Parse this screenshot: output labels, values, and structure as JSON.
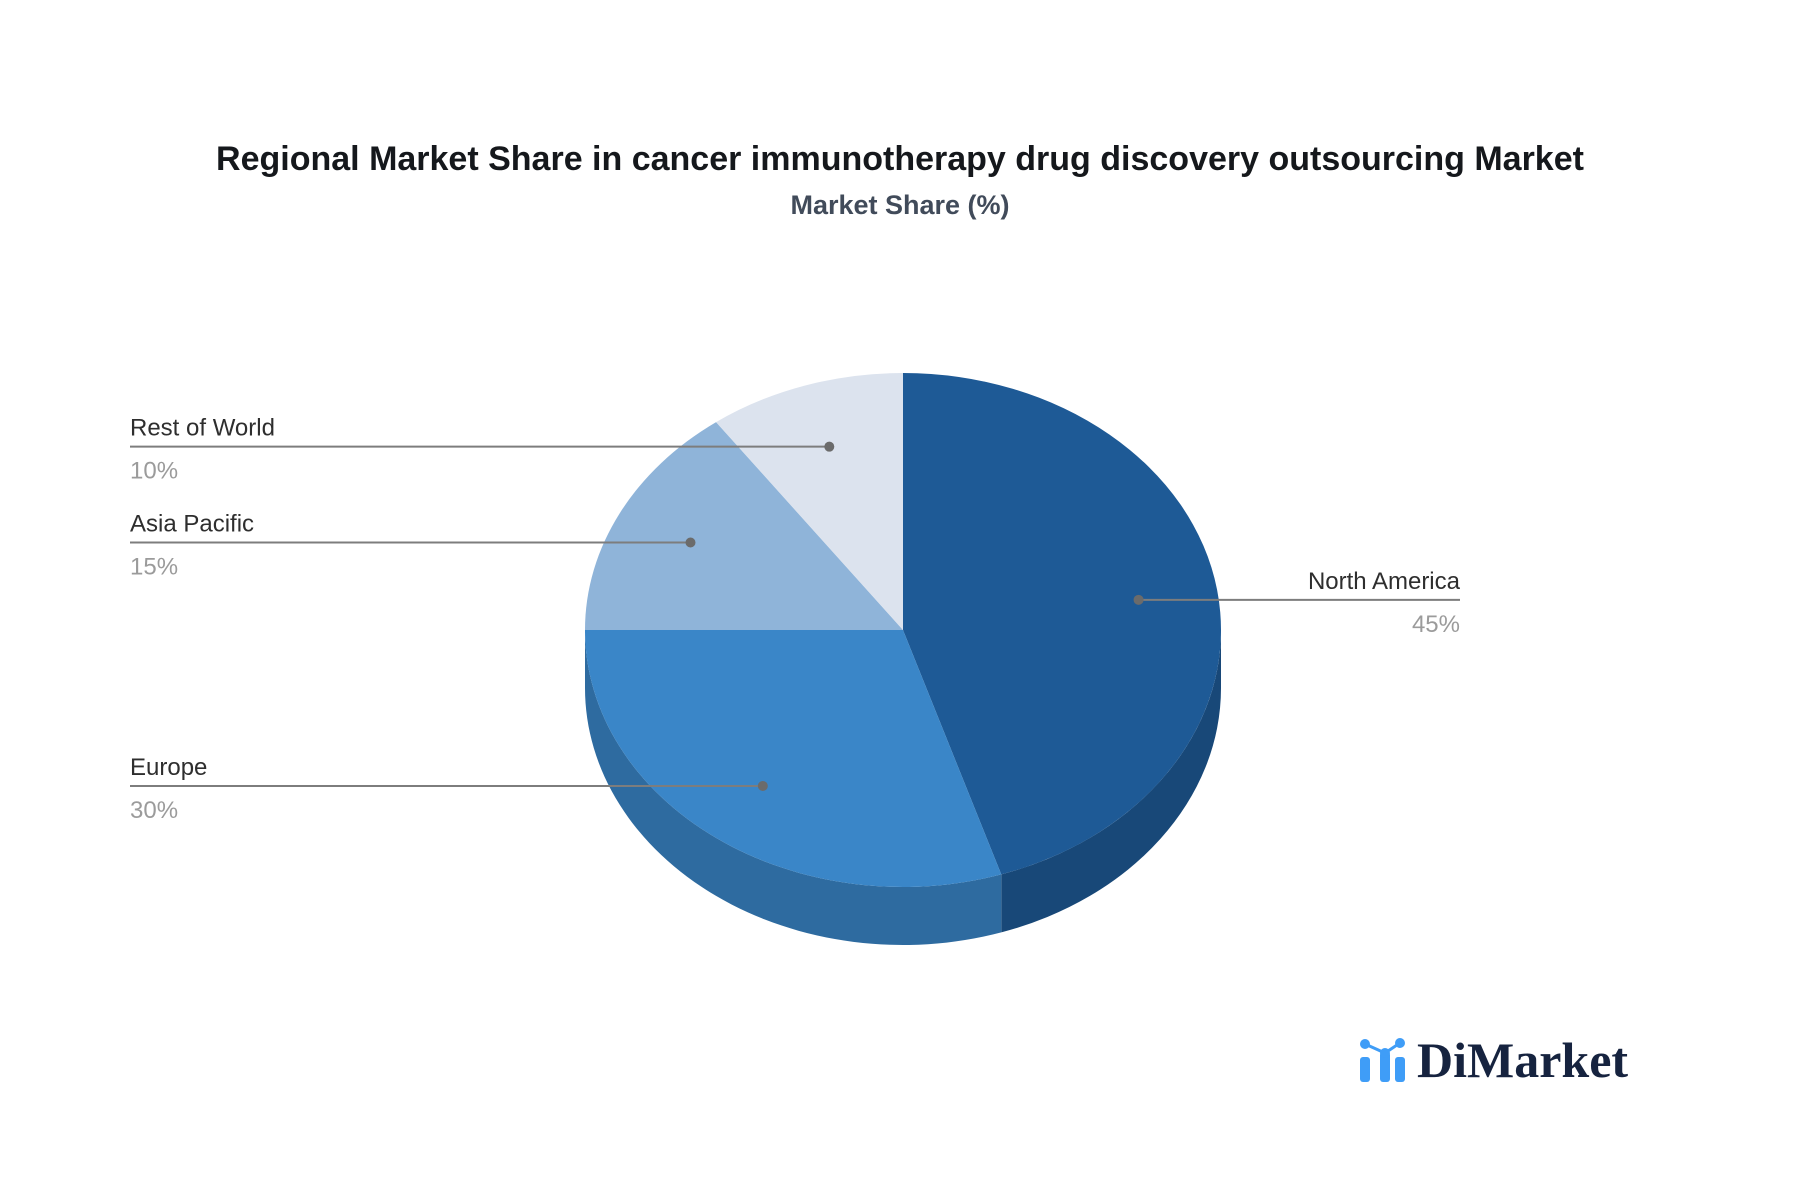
{
  "chart_data": {
    "type": "pie",
    "style": "3d",
    "title": "Regional Market Share in cancer immunotherapy drug discovery outsourcing Market",
    "subtitle": "Market Share (%)",
    "unit": "%",
    "categories": [
      "North America",
      "Europe",
      "Asia Pacific",
      "Rest of World"
    ],
    "values": [
      45,
      30,
      15,
      10
    ],
    "colors": [
      "#1e5a96",
      "#3a86c8",
      "#8fb4d9",
      "#dce3ee"
    ],
    "start_angle": "top",
    "direction": "clockwise",
    "labels_position": "outside",
    "title_color": "#15181c",
    "subtitle_color": "#414b5a",
    "label_color": "#2e2e2e",
    "value_color": "#9b9b9b",
    "leader_line_color": "#7d7d7d",
    "leader_dot_color": "#6b6b6b"
  },
  "logo": {
    "brand": "DiMarket",
    "icon": "bar-chart-trend-icon",
    "text_color": "#16233f",
    "icon_color": "#3f9df7"
  }
}
